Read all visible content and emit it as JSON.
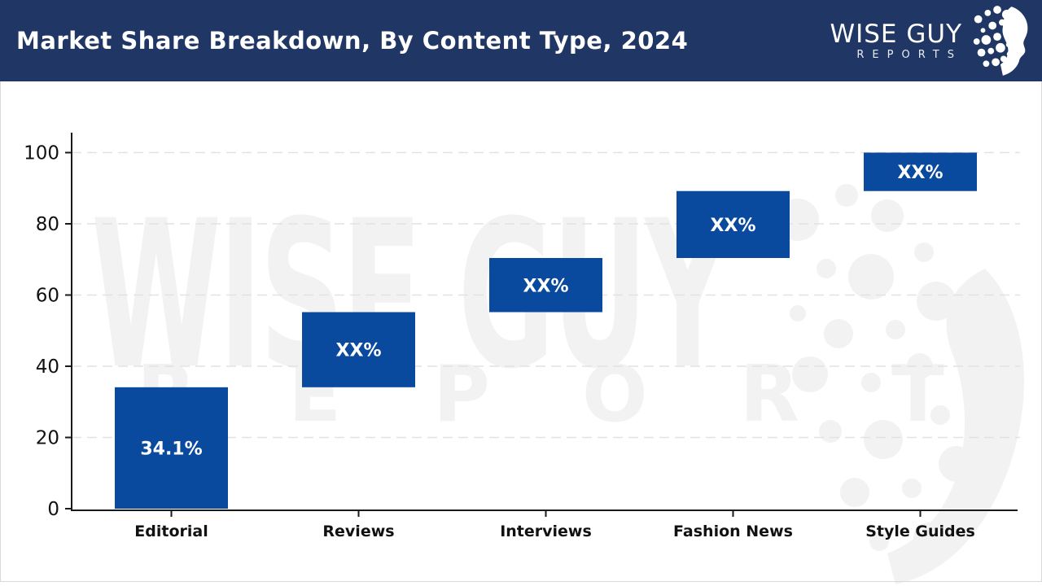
{
  "header": {
    "title": "Market Share Breakdown, By Content Type, 2024",
    "bg_color": "#203664",
    "logo": {
      "line1": "WISE GUY",
      "line2": "REPORTS"
    }
  },
  "watermark": {
    "line1": "WISE GUY",
    "line2": "R E P O R T S"
  },
  "chart_data": {
    "type": "bar",
    "subtype": "waterfall",
    "title": "Market Share Breakdown, By Content Type, 2024",
    "categories": [
      "Editorial",
      "Reviews",
      "Interviews",
      "Fashion News",
      "Style Guides"
    ],
    "segments": [
      {
        "category": "Editorial",
        "start": 0,
        "end": 34.1,
        "label": "34.1%"
      },
      {
        "category": "Reviews",
        "start": 34.1,
        "end": 55.2,
        "label": "XX%"
      },
      {
        "category": "Interviews",
        "start": 55.2,
        "end": 70.4,
        "label": "XX%"
      },
      {
        "category": "Fashion News",
        "start": 70.4,
        "end": 89.2,
        "label": "XX%"
      },
      {
        "category": "Style Guides",
        "start": 89.2,
        "end": 100,
        "label": "XX%"
      }
    ],
    "y_ticks": [
      0,
      20,
      40,
      60,
      80,
      100
    ],
    "ylim": [
      0,
      105
    ],
    "xlabel": "",
    "ylabel": "",
    "grid": "horizontal-dashed",
    "legend": "none",
    "bar_color": "#0a4a9e",
    "grid_color": "#e2e2e2",
    "axis_color": "#1a1a1a",
    "bar_label_color": "#ffffff"
  }
}
